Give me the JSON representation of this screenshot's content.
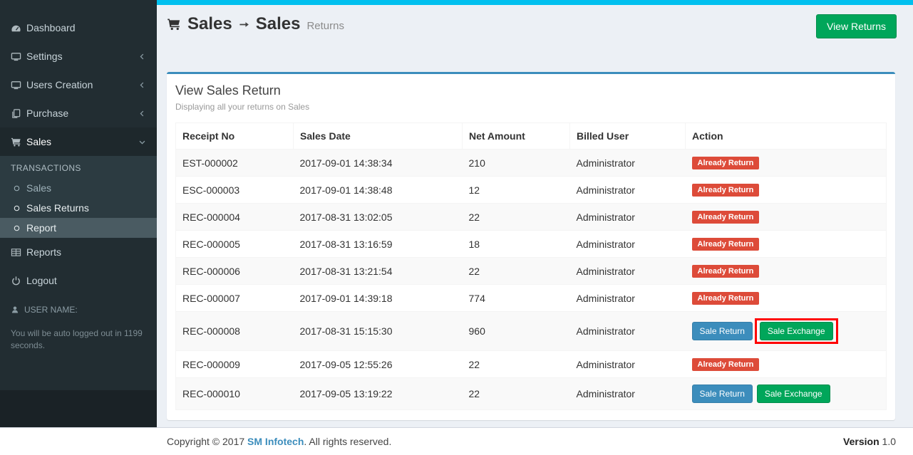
{
  "sidebar": {
    "items": [
      {
        "label": "Dashboard",
        "icon": "dashboard-icon"
      },
      {
        "label": "Settings",
        "icon": "monitor-icon",
        "chevron": "left"
      },
      {
        "label": "Users Creation",
        "icon": "monitor-icon",
        "chevron": "left"
      },
      {
        "label": "Purchase",
        "icon": "files-icon",
        "chevron": "left"
      },
      {
        "label": "Sales",
        "icon": "cart-icon",
        "chevron": "down",
        "active": true
      }
    ],
    "transactions_header": "TRANSACTIONS",
    "sub_items": [
      {
        "label": "Sales"
      },
      {
        "label": "Sales Returns",
        "current": true
      },
      {
        "label": "Report",
        "hovered": true
      }
    ],
    "reports_label": "Reports",
    "logout_label": "Logout",
    "user_label": "USER NAME:",
    "logout_note": "You will be auto logged out in 1199 seconds."
  },
  "header": {
    "crumb_primary": "Sales",
    "crumb_secondary": "Sales",
    "crumb_sub": "Returns",
    "view_returns_label": "View Returns"
  },
  "box": {
    "title": "View Sales Return",
    "subtitle": "Displaying all your returns on Sales"
  },
  "table": {
    "columns": [
      "Receipt No",
      "Sales Date",
      "Net Amount",
      "Billed User",
      "Action"
    ],
    "badge_already": "Already Return",
    "btn_return": "Sale Return",
    "btn_exchange": "Sale Exchange",
    "rows": [
      {
        "receipt": "EST-000002",
        "date": "2017-09-01 14:38:34",
        "amount": "210",
        "user": "Administrator",
        "action": "already"
      },
      {
        "receipt": "ESC-000003",
        "date": "2017-09-01 14:38:48",
        "amount": "12",
        "user": "Administrator",
        "action": "already"
      },
      {
        "receipt": "REC-000004",
        "date": "2017-08-31 13:02:05",
        "amount": "22",
        "user": "Administrator",
        "action": "already"
      },
      {
        "receipt": "REC-000005",
        "date": "2017-08-31 13:16:59",
        "amount": "18",
        "user": "Administrator",
        "action": "already"
      },
      {
        "receipt": "REC-000006",
        "date": "2017-08-31 13:21:54",
        "amount": "22",
        "user": "Administrator",
        "action": "already"
      },
      {
        "receipt": "REC-000007",
        "date": "2017-09-01 14:39:18",
        "amount": "774",
        "user": "Administrator",
        "action": "already"
      },
      {
        "receipt": "REC-000008",
        "date": "2017-08-31 15:15:30",
        "amount": "960",
        "user": "Administrator",
        "action": "buttons",
        "highlight_exchange": true
      },
      {
        "receipt": "REC-000009",
        "date": "2017-09-05 12:55:26",
        "amount": "22",
        "user": "Administrator",
        "action": "already"
      },
      {
        "receipt": "REC-000010",
        "date": "2017-09-05 13:19:22",
        "amount": "22",
        "user": "Administrator",
        "action": "buttons"
      }
    ]
  },
  "footer": {
    "copyright_prefix": "Copyright © 2017 ",
    "company": "SM Infotech",
    "copyright_suffix": ". All rights reserved.",
    "version_label": "Version",
    "version_value": "1.0"
  },
  "colors": {
    "accent_cyan": "#00c0ef",
    "primary_blue": "#3c8dbc",
    "green": "#00a65a",
    "red": "#dd4b39",
    "highlight_red": "#ff0000",
    "sidebar_bg": "#222d32"
  }
}
